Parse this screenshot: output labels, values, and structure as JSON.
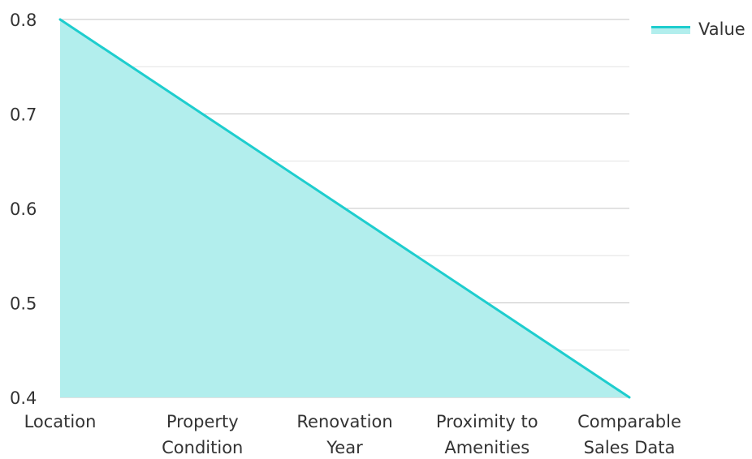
{
  "chart_data": {
    "type": "area",
    "categories": [
      "Location",
      "Property Condition",
      "Renovation Year",
      "Proximity to Amenities",
      "Comparable Sales Data"
    ],
    "category_lines": [
      [
        "Location"
      ],
      [
        "Property",
        "Condition"
      ],
      [
        "Renovation",
        "Year"
      ],
      [
        "Proximity to",
        "Amenities"
      ],
      [
        "Comparable",
        "Sales Data"
      ]
    ],
    "series": [
      {
        "name": "Value",
        "values": [
          0.8,
          0.7,
          0.6,
          0.5,
          0.4
        ]
      }
    ],
    "ylim": [
      0.4,
      0.8
    ],
    "yticks": [
      "0.4",
      "0.5",
      "0.6",
      "0.7",
      "0.8"
    ],
    "grid": true,
    "legend": "top-right",
    "colors": {
      "line": "#1ecdce",
      "fill": "#b2eeed",
      "grid": "#c8c8c8",
      "label": "#333333"
    }
  }
}
